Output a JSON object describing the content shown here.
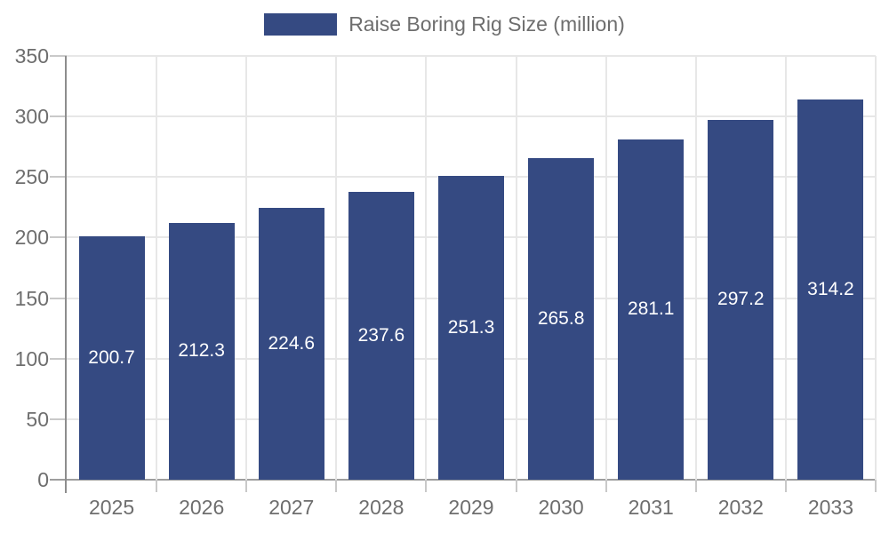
{
  "legend": {
    "label": "Raise Boring Rig Size (million)"
  },
  "chart_data": {
    "type": "bar",
    "title": "",
    "xlabel": "",
    "ylabel": "",
    "categories": [
      "2025",
      "2026",
      "2027",
      "2028",
      "2029",
      "2030",
      "2031",
      "2032",
      "2033"
    ],
    "values": [
      200.7,
      212.3,
      224.6,
      237.6,
      251.3,
      265.8,
      281.1,
      297.2,
      314.2
    ],
    "series_name": "Raise Boring Rig Size (million)",
    "ylim": [
      0,
      350
    ],
    "ytick_step": 50,
    "yticks": [
      0,
      50,
      100,
      150,
      200,
      250,
      300,
      350
    ],
    "grid": true,
    "legend_position": "top",
    "value_labels": "inside-center"
  },
  "colors": {
    "bar": "#354a82",
    "bar_value_text": "#ffffff",
    "grid": "#e7e7e7",
    "tick": "#c9c9c9",
    "y_axis_line": "#8d8d8d",
    "x_axis_line": "#9e9e9e",
    "axis_text": "#6e6e6e",
    "legend_text": "#6e6e6e",
    "background": "#ffffff"
  }
}
